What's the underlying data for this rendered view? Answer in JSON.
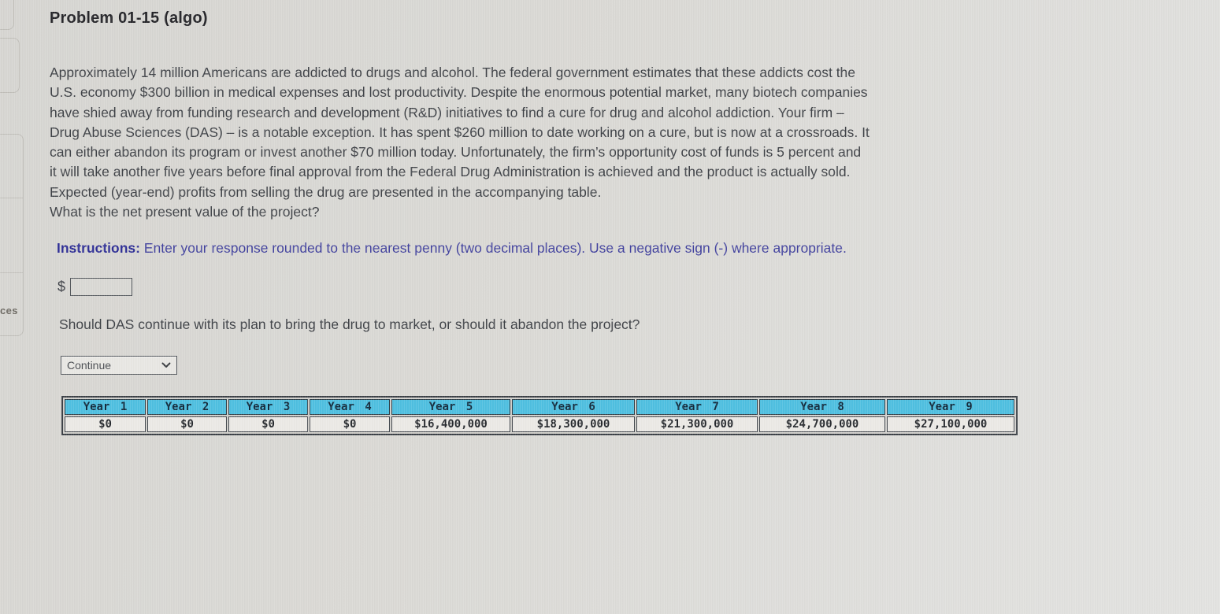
{
  "page": {
    "title": "Problem 01-15 (algo)"
  },
  "problem": {
    "lines": [
      "Approximately 14 million Americans are addicted to drugs and alcohol. The federal government estimates that these addicts cost the",
      "U.S. economy $300 billion in medical expenses and lost productivity. Despite the enormous potential market, many biotech companies",
      "have shied away from funding research and development (R&D) initiatives to find a cure for drug and alcohol addiction. Your firm –",
      "Drug Abuse Sciences (DAS) – is a notable exception. It has spent $260 million to date working on a cure, but is now at a crossroads. It",
      "can either abandon its program or invest another $70 million today. Unfortunately, the firm’s opportunity cost of funds is 5 percent and",
      "it will take another five years before final approval from the Federal Drug Administration is achieved and the product is actually sold.",
      "Expected (year-end) profits from selling the drug are presented in the accompanying table.",
      "What is the net present value of the project?"
    ]
  },
  "instructions": {
    "label": "Instructions:",
    "text": " Enter your response rounded to the nearest penny (two decimal places). Use a negative sign (-) where appropriate."
  },
  "answer": {
    "currency_symbol": "$",
    "input_value": ""
  },
  "question2": "Should DAS continue with its plan to bring the drug to market, or should it abandon the project?",
  "decision_dropdown": {
    "selected": "Continue",
    "icon": "chevron-down-icon"
  },
  "table": {
    "columns": [
      "Year 1",
      "Year 2",
      "Year 3",
      "Year 4",
      "Year 5",
      "Year 6",
      "Year 7",
      "Year 8",
      "Year 9"
    ],
    "values": [
      "$0",
      "$0",
      "$0",
      "$0",
      "$16,400,000",
      "$18,300,000",
      "$21,300,000",
      "$24,700,000",
      "$27,100,000"
    ]
  },
  "sidebar_fragment": {
    "text": "ces"
  },
  "colors": {
    "table_header_bg": "#4fbfe0",
    "table_header_text": "#132b3d",
    "table_cell_bg": "#ebe9e5",
    "table_border": "#3b4046",
    "instructions_label": "#2f2f96",
    "instructions_text": "#42429e",
    "body_text": "#3f4247",
    "page_bg_1": "#d6d5d1"
  }
}
